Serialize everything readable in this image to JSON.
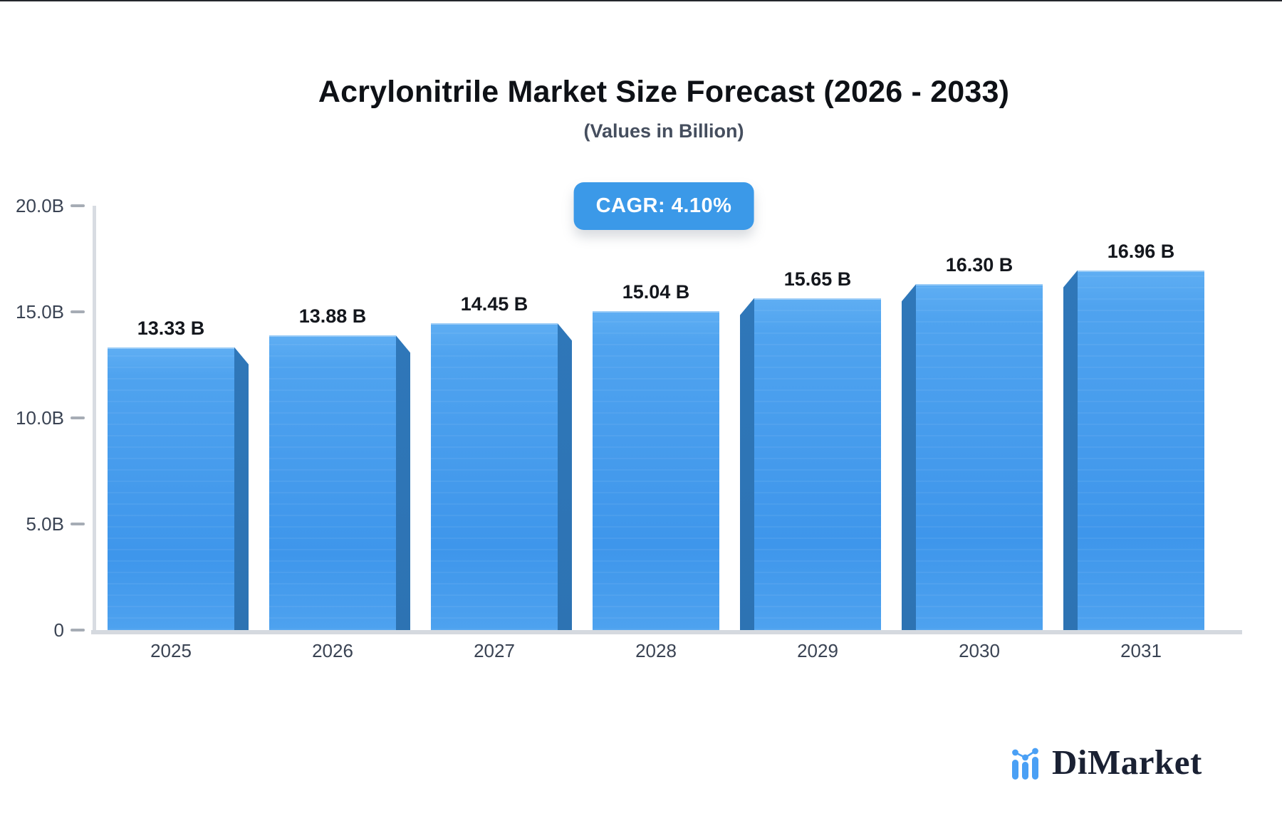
{
  "page": {
    "title": "Acrylonitrile Market Size Forecast (2026 - 2033)",
    "subtitle": "(Values in Billion)"
  },
  "badge": {
    "label": "CAGR: 4.10%",
    "bg_color": "#3B99E8",
    "text_color": "#FFFFFF"
  },
  "chart_data": {
    "type": "bar",
    "title": "Acrylonitrile Market Size Forecast (2026 - 2033)",
    "subtitle": "(Values in Billion)",
    "cagr_annotation": "CAGR: 4.10%",
    "categories": [
      "2025",
      "2026",
      "2027",
      "2028",
      "2029",
      "2030",
      "2031"
    ],
    "values": [
      13.33,
      13.88,
      14.45,
      15.04,
      15.65,
      16.3,
      16.96
    ],
    "value_labels": [
      "13.33 B",
      "13.88 B",
      "14.45 B",
      "15.04 B",
      "15.65 B",
      "16.30 B",
      "16.96 B"
    ],
    "xlabel": "",
    "ylabel": "",
    "ylim": [
      0,
      20
    ],
    "y_ticks": [
      {
        "label": "20.0B",
        "value": 20
      },
      {
        "label": "15.0B",
        "value": 15
      },
      {
        "label": "10.0B",
        "value": 10
      },
      {
        "label": "5.0B",
        "value": 5
      },
      {
        "label": "0",
        "value": 0
      }
    ],
    "grid": false,
    "legend": false,
    "bar_color": "#4BA0EE",
    "bar_side_color": "#2E75B6",
    "axis_color": "#D7DBE1"
  },
  "branding": {
    "logo_text": "DiMarket",
    "logo_icon": "mini-bar-line-chart",
    "logo_color": "#4AA0F5",
    "text_color": "#1A2133"
  }
}
